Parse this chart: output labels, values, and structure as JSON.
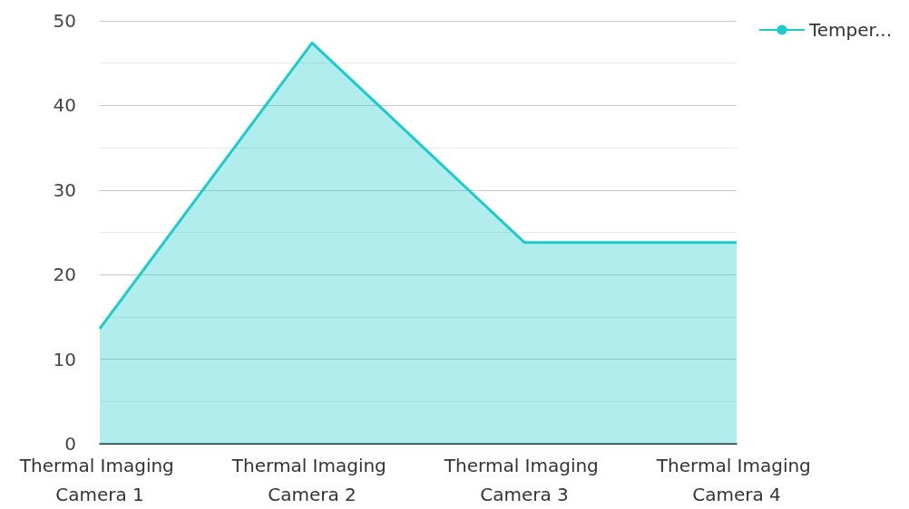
{
  "chart_data": {
    "type": "area",
    "categories": [
      "Thermal Imaging Camera 1",
      "Thermal Imaging Camera 2",
      "Thermal Imaging Camera 3",
      "Thermal Imaging Camera 4"
    ],
    "series": [
      {
        "name": "Temper...",
        "color": "#1ecbcb",
        "values": [
          13.6,
          47.4,
          23.8,
          23.8
        ]
      }
    ],
    "ylim": [
      0,
      50
    ],
    "yticks": [
      0,
      10,
      20,
      30,
      40,
      50
    ],
    "grid": "y",
    "legend": "top right",
    "marker": "none"
  }
}
